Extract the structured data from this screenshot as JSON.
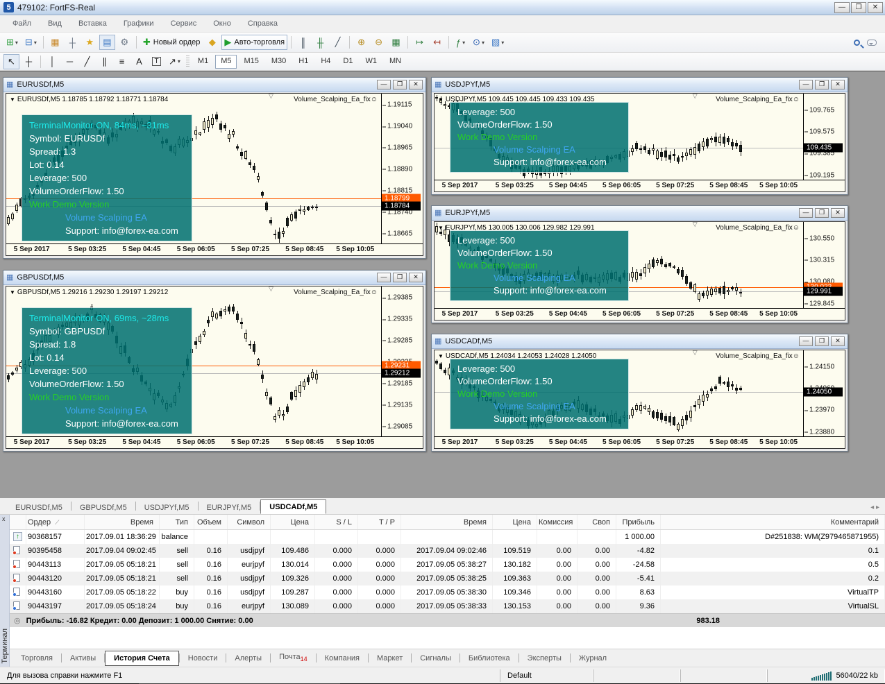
{
  "titlebar": {
    "title": "479102: FortFS-Real"
  },
  "menu": {
    "items": [
      "Файл",
      "Вид",
      "Вставка",
      "Графики",
      "Сервис",
      "Окно",
      "Справка"
    ]
  },
  "toolbar": {
    "new_order_label": "Новый ордер",
    "autotrade_label": "Авто-торговля",
    "timeframes": [
      "M1",
      "M5",
      "M15",
      "M30",
      "H1",
      "H4",
      "D1",
      "W1",
      "MN"
    ],
    "active_timeframe": "M5"
  },
  "charts": [
    {
      "title": "EURUSDf,M5",
      "variant": "full",
      "ohlc": "EURUSDf,M5  1.18785 1.18792 1.18771 1.18784",
      "ea_label": "Volume_Scalping_Ea_fix☺",
      "overlay": [
        {
          "text": "TerminalMonitor ON, 84ms, ~31ms",
          "color": "cyan"
        },
        {
          "text": "Symbol: EURUSDf"
        },
        {
          "text": "Spread: 1.3"
        },
        {
          "text": "Lot: 0.14"
        },
        {
          "text": "Leverage: 500"
        },
        {
          "text": "VolumeOrderFlow: 1.50"
        },
        {
          "text": "Work Demo Version",
          "color": "green"
        },
        {
          "text": "Volume Scalping EA",
          "color": "blue",
          "indent": true
        },
        {
          "text": "Support: info@forex-ea.com",
          "indent": true
        }
      ],
      "ticks": [
        {
          "label": "1.19115",
          "f": 0.075
        },
        {
          "label": "1.19040",
          "f": 0.218
        },
        {
          "label": "1.18965",
          "f": 0.361
        },
        {
          "label": "1.18890",
          "f": 0.504
        },
        {
          "label": "1.18815",
          "f": 0.647
        },
        {
          "label": "1.18740",
          "f": 0.79
        },
        {
          "label": "1.18665",
          "f": 0.933
        }
      ],
      "price_labels": [
        {
          "text": "1.18799",
          "kind": "ask",
          "f": 0.7
        },
        {
          "text": "1.18784",
          "kind": "bid",
          "f": 0.748
        }
      ],
      "lines": [
        {
          "kind": "ask",
          "f": 0.7
        },
        {
          "kind": "bid",
          "f": 0.748
        }
      ],
      "x_labels": [
        "5 Sep 2017",
        "5 Sep 03:25",
        "5 Sep 04:45",
        "5 Sep 06:05",
        "5 Sep 07:25",
        "5 Sep 08:45",
        "5 Sep 10:05"
      ],
      "shape": [
        0.82,
        0.7,
        0.5,
        0.33,
        0.22,
        0.3,
        0.17,
        0.24,
        0.36,
        0.28,
        0.16,
        0.3,
        0.52,
        0.96,
        0.8,
        0.73
      ]
    },
    {
      "title": "GBPUSDf,M5",
      "variant": "full",
      "ohlc": "GBPUSDf,M5  1.29216 1.29230 1.29197 1.29212",
      "ea_label": "Volume_Scalping_Ea_fix☺",
      "overlay": [
        {
          "text": "TerminalMonitor ON, 69ms, ~28ms",
          "color": "cyan"
        },
        {
          "text": "Symbol: GBPUSDf"
        },
        {
          "text": "Spread: 1.8"
        },
        {
          "text": "Lot: 0.14"
        },
        {
          "text": "Leverage: 500"
        },
        {
          "text": "VolumeOrderFlow: 1.50"
        },
        {
          "text": "Work Demo Version",
          "color": "green"
        },
        {
          "text": "Volume Scalping EA",
          "color": "blue",
          "indent": true
        },
        {
          "text": "Support: info@forex-ea.com",
          "indent": true
        }
      ],
      "ticks": [
        {
          "label": "1.29385",
          "f": 0.075
        },
        {
          "label": "1.29335",
          "f": 0.218
        },
        {
          "label": "1.29285",
          "f": 0.361
        },
        {
          "label": "1.29235",
          "f": 0.504
        },
        {
          "label": "1.29185",
          "f": 0.647
        },
        {
          "label": "1.29135",
          "f": 0.79
        },
        {
          "label": "1.29085",
          "f": 0.933
        }
      ],
      "price_labels": [
        {
          "text": "1.29231",
          "kind": "ask",
          "f": 0.53
        },
        {
          "text": "1.29212",
          "kind": "bid",
          "f": 0.578
        }
      ],
      "lines": [
        {
          "kind": "ask",
          "f": 0.53
        },
        {
          "kind": "bid",
          "f": 0.578
        }
      ],
      "x_labels": [
        "5 Sep 2017",
        "5 Sep 03:25",
        "5 Sep 04:45",
        "5 Sep 06:05",
        "5 Sep 07:25",
        "5 Sep 08:45",
        "5 Sep 10:05"
      ],
      "shape": [
        0.58,
        0.5,
        0.34,
        0.24,
        0.17,
        0.28,
        0.52,
        0.72,
        0.8,
        0.38,
        0.2,
        0.17,
        0.42,
        0.9,
        0.72,
        0.58
      ]
    },
    {
      "title": "USDJPYf,M5",
      "variant": "compact",
      "ohlc": "USDJPYf,M5  109.445 109.445 109.433 109.435",
      "ea_label": "Volume_Scalping_Ea_fix☺",
      "overlay": [
        {
          "text": "Leverage: 500"
        },
        {
          "text": "VolumeOrderFlow: 1.50"
        },
        {
          "text": "Work Demo Version",
          "color": "green"
        },
        {
          "text": "Volume Scalping EA",
          "color": "blue",
          "indent": true
        },
        {
          "text": "Support: info@forex-ea.com",
          "indent": true
        }
      ],
      "ticks": [
        {
          "label": "109.765",
          "f": 0.19
        },
        {
          "label": "109.575",
          "f": 0.443
        },
        {
          "label": "109.385",
          "f": 0.697
        },
        {
          "label": "109.195",
          "f": 0.95
        }
      ],
      "price_labels": [
        {
          "text": "109.435",
          "kind": "bid",
          "f": 0.63
        }
      ],
      "lines": [
        {
          "kind": "bid",
          "f": 0.63
        }
      ],
      "x_labels": [
        "5 Sep 2017",
        "5 Sep 03:25",
        "5 Sep 04:45",
        "5 Sep 06:05",
        "5 Sep 07:25",
        "5 Sep 08:45",
        "5 Sep 10:05"
      ],
      "shape": [
        0.08,
        0.16,
        0.38,
        0.68,
        0.88,
        0.93,
        0.87,
        0.84,
        0.8,
        0.74,
        0.62,
        0.7,
        0.76,
        0.6,
        0.52,
        0.62
      ]
    },
    {
      "title": "EURJPYf,M5",
      "variant": "compact",
      "ohlc": "EURJPYf,M5  130.005 130.006 129.982 129.991",
      "ea_label": "Volume_Scalping_Ea_fix☺",
      "overlay": [
        {
          "text": "Leverage: 500"
        },
        {
          "text": "VolumeOrderFlow: 1.50"
        },
        {
          "text": "Work Demo Version",
          "color": "green"
        },
        {
          "text": "Volume Scalping EA",
          "color": "blue",
          "indent": true
        },
        {
          "text": "Support: info@forex-ea.com",
          "indent": true
        }
      ],
      "ticks": [
        {
          "label": "130.550",
          "f": 0.19
        },
        {
          "label": "130.315",
          "f": 0.443
        },
        {
          "label": "130.080",
          "f": 0.697
        },
        {
          "label": "129.845",
          "f": 0.95
        }
      ],
      "price_labels": [
        {
          "text": "130.023",
          "kind": "ask",
          "f": 0.755
        },
        {
          "text": "129.991",
          "kind": "bid",
          "f": 0.81
        }
      ],
      "lines": [
        {
          "kind": "ask",
          "f": 0.755
        },
        {
          "kind": "bid",
          "f": 0.81
        }
      ],
      "x_labels": [
        "5 Sep 2017",
        "5 Sep 03:25",
        "5 Sep 04:45",
        "5 Sep 06:05",
        "5 Sep 07:25",
        "5 Sep 08:45",
        "5 Sep 10:05"
      ],
      "shape": [
        0.11,
        0.2,
        0.34,
        0.52,
        0.66,
        0.63,
        0.65,
        0.62,
        0.66,
        0.64,
        0.6,
        0.45,
        0.55,
        0.86,
        0.8,
        0.8
      ]
    },
    {
      "title": "USDCADf,M5",
      "variant": "compact",
      "ohlc": "USDCADf,M5  1.24034 1.24053 1.24028 1.24050",
      "ea_label": "Volume_Scalping_Ea_fix☺",
      "overlay": [
        {
          "text": "Leverage: 500"
        },
        {
          "text": "VolumeOrderFlow: 1.50"
        },
        {
          "text": "Work Demo Version",
          "color": "green"
        },
        {
          "text": "Volume Scalping EA",
          "color": "blue",
          "indent": true
        },
        {
          "text": "Support: info@forex-ea.com",
          "indent": true
        }
      ],
      "ticks": [
        {
          "label": "1.24150",
          "f": 0.19
        },
        {
          "label": "1.24060",
          "f": 0.443
        },
        {
          "label": "1.23970",
          "f": 0.697
        },
        {
          "label": "1.23880",
          "f": 0.95
        }
      ],
      "price_labels": [
        {
          "text": "1.24050",
          "kind": "bid",
          "f": 0.48
        }
      ],
      "lines": [
        {
          "kind": "bid",
          "f": 0.48
        }
      ],
      "x_labels": [
        "5 Sep 2017",
        "5 Sep 03:25",
        "5 Sep 04:45",
        "5 Sep 06:05",
        "5 Sep 07:25",
        "5 Sep 08:45",
        "5 Sep 10:05"
      ],
      "shape": [
        0.16,
        0.3,
        0.48,
        0.64,
        0.78,
        0.86,
        0.68,
        0.62,
        0.74,
        0.82,
        0.66,
        0.76,
        0.88,
        0.58,
        0.36,
        0.46
      ]
    }
  ],
  "chart_tabs": {
    "tabs": [
      "EURUSDf,M5",
      "GBPUSDf,M5",
      "USDJPYf,M5",
      "EURJPYf,M5",
      "USDCADf,M5"
    ],
    "active": "USDCADf,M5"
  },
  "terminal": {
    "panel_label": "Терминал",
    "columns": [
      "",
      "Ордер",
      "Время",
      "Тип",
      "Объем",
      "Символ",
      "Цена",
      "S / L",
      "T / P",
      "Время",
      "Цена",
      "Комиссия",
      "Своп",
      "Прибыль",
      "Комментарий"
    ],
    "rows": [
      {
        "icon": "balance",
        "order": "90368157",
        "time": "2017.09.01 18:36:29",
        "type": "balance",
        "volume": "",
        "symbol": "",
        "price": "",
        "sl": "",
        "tp": "",
        "time2": "",
        "price2": "",
        "commission": "",
        "swap": "",
        "profit": "1 000.00",
        "comment": "D#251838: WM(Z979465871955)"
      },
      {
        "icon": "sell",
        "order": "90395458",
        "time": "2017.09.04 09:02:45",
        "type": "sell",
        "volume": "0.16",
        "symbol": "usdjpyf",
        "price": "109.486",
        "sl": "0.000",
        "tp": "0.000",
        "time2": "2017.09.04 09:02:46",
        "price2": "109.519",
        "commission": "0.00",
        "swap": "0.00",
        "profit": "-4.82",
        "comment": "0.1"
      },
      {
        "icon": "sell",
        "order": "90443113",
        "time": "2017.09.05 05:18:21",
        "type": "sell",
        "volume": "0.16",
        "symbol": "eurjpyf",
        "price": "130.014",
        "sl": "0.000",
        "tp": "0.000",
        "time2": "2017.09.05 05:38:27",
        "price2": "130.182",
        "commission": "0.00",
        "swap": "0.00",
        "profit": "-24.58",
        "comment": "0.5"
      },
      {
        "icon": "sell",
        "order": "90443120",
        "time": "2017.09.05 05:18:21",
        "type": "sell",
        "volume": "0.16",
        "symbol": "usdjpyf",
        "price": "109.326",
        "sl": "0.000",
        "tp": "0.000",
        "time2": "2017.09.05 05:38:25",
        "price2": "109.363",
        "commission": "0.00",
        "swap": "0.00",
        "profit": "-5.41",
        "comment": "0.2"
      },
      {
        "icon": "buy",
        "order": "90443160",
        "time": "2017.09.05 05:18:22",
        "type": "buy",
        "volume": "0.16",
        "symbol": "usdjpyf",
        "price": "109.287",
        "sl": "0.000",
        "tp": "0.000",
        "time2": "2017.09.05 05:38:30",
        "price2": "109.346",
        "commission": "0.00",
        "swap": "0.00",
        "profit": "8.63",
        "comment": "VirtualTP"
      },
      {
        "icon": "buy",
        "order": "90443197",
        "time": "2017.09.05 05:18:24",
        "type": "buy",
        "volume": "0.16",
        "symbol": "eurjpyf",
        "price": "130.089",
        "sl": "0.000",
        "tp": "0.000",
        "time2": "2017.09.05 05:38:33",
        "price2": "130.153",
        "commission": "0.00",
        "swap": "0.00",
        "profit": "9.36",
        "comment": "VirtualSL"
      }
    ],
    "summary": {
      "left": "Прибыль: -16.82  Кредит: 0.00  Депозит: 1 000.00  Снятие: 0.00",
      "profit_total": "983.18"
    }
  },
  "bottom_tabs": {
    "tabs": [
      "Торговля",
      "Активы",
      "История Счета",
      "Новости",
      "Алерты",
      "Почта",
      "Компания",
      "Маркет",
      "Сигналы",
      "Библиотека",
      "Эксперты",
      "Журнал"
    ],
    "active": "История Счета",
    "mail_badge": "14"
  },
  "status": {
    "help": "Для вызова справки нажмите F1",
    "profile": "Default",
    "traffic": "56040/22 kb"
  },
  "colors": {
    "accent_teal_overlay": "#007070",
    "ask_orange": "#ff5a00",
    "bid_black": "#000000",
    "demo_green": "#27cf27",
    "ea_blue": "#3fa6ef",
    "monitor_cyan": "#1de9e9"
  }
}
